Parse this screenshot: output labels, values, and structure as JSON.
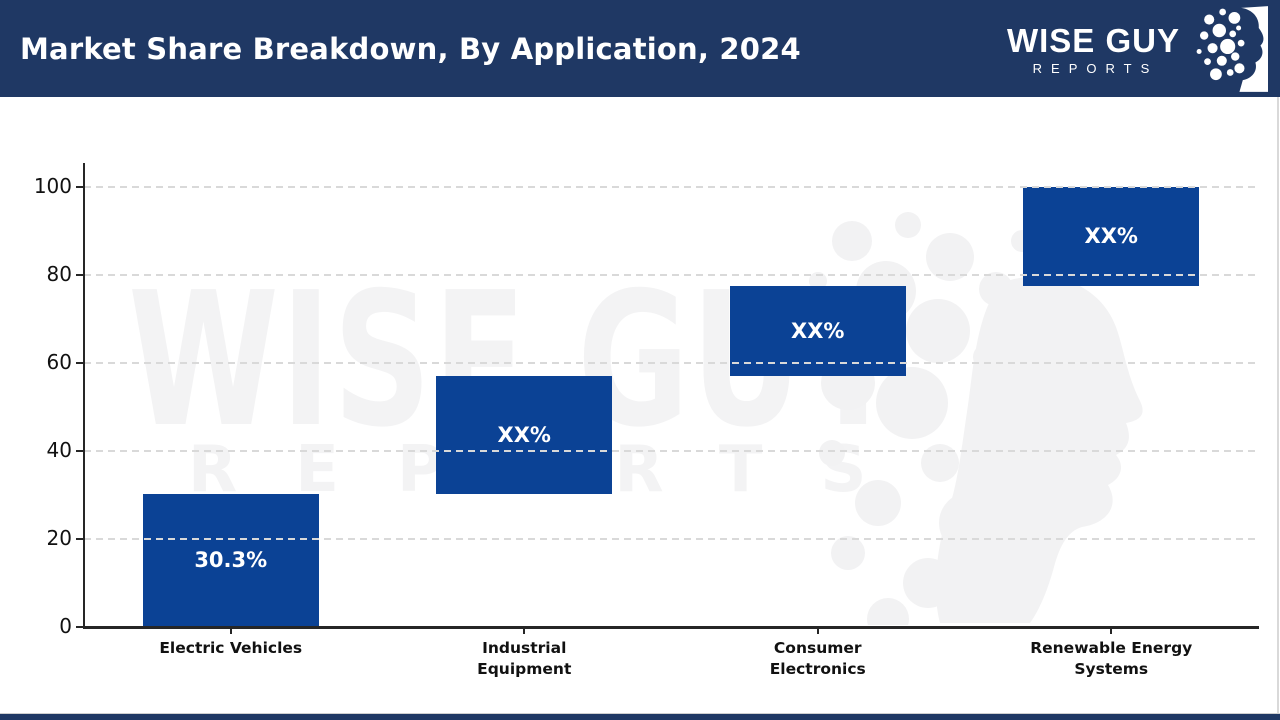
{
  "header": {
    "title": "Market Share Breakdown, By Application, 2024",
    "logo": {
      "name_line": "WISE GUY",
      "sub_line": "REPORTS"
    }
  },
  "watermark": {
    "line1": "WISE GUY",
    "line2": "REPORTS"
  },
  "colors": {
    "header_navy": "#1f3864",
    "bar_blue": "#0b4295",
    "gridline_gray": "#d9d9d9",
    "axis_black": "#262626",
    "watermark_gray": "#f3f3f4",
    "bar_label_white": "#ffffff"
  },
  "chart_data": {
    "type": "bar",
    "subtype": "waterfall",
    "title": "Market Share Breakdown, By Application, 2024",
    "xlabel": "",
    "ylabel": "",
    "ylim": [
      0,
      100
    ],
    "yticks": [
      0,
      20,
      40,
      60,
      80,
      100
    ],
    "grid": "horizontal-dashed",
    "legend": "none",
    "categories": [
      "Electric Vehicles",
      "Industrial\nEquipment",
      "Consumer\nElectronics",
      "Renewable Energy\nSystems"
    ],
    "bars": [
      {
        "category": "Electric Vehicles",
        "start": 0,
        "end": 30.3,
        "label": "30.3%"
      },
      {
        "category": "Industrial\nEquipment",
        "start": 30.3,
        "end": 57.0,
        "label": "XX%"
      },
      {
        "category": "Consumer\nElectronics",
        "start": 57.0,
        "end": 77.5,
        "label": "XX%"
      },
      {
        "category": "Renewable Energy\nSystems",
        "start": 77.5,
        "end": 100,
        "label": "XX%"
      }
    ]
  }
}
